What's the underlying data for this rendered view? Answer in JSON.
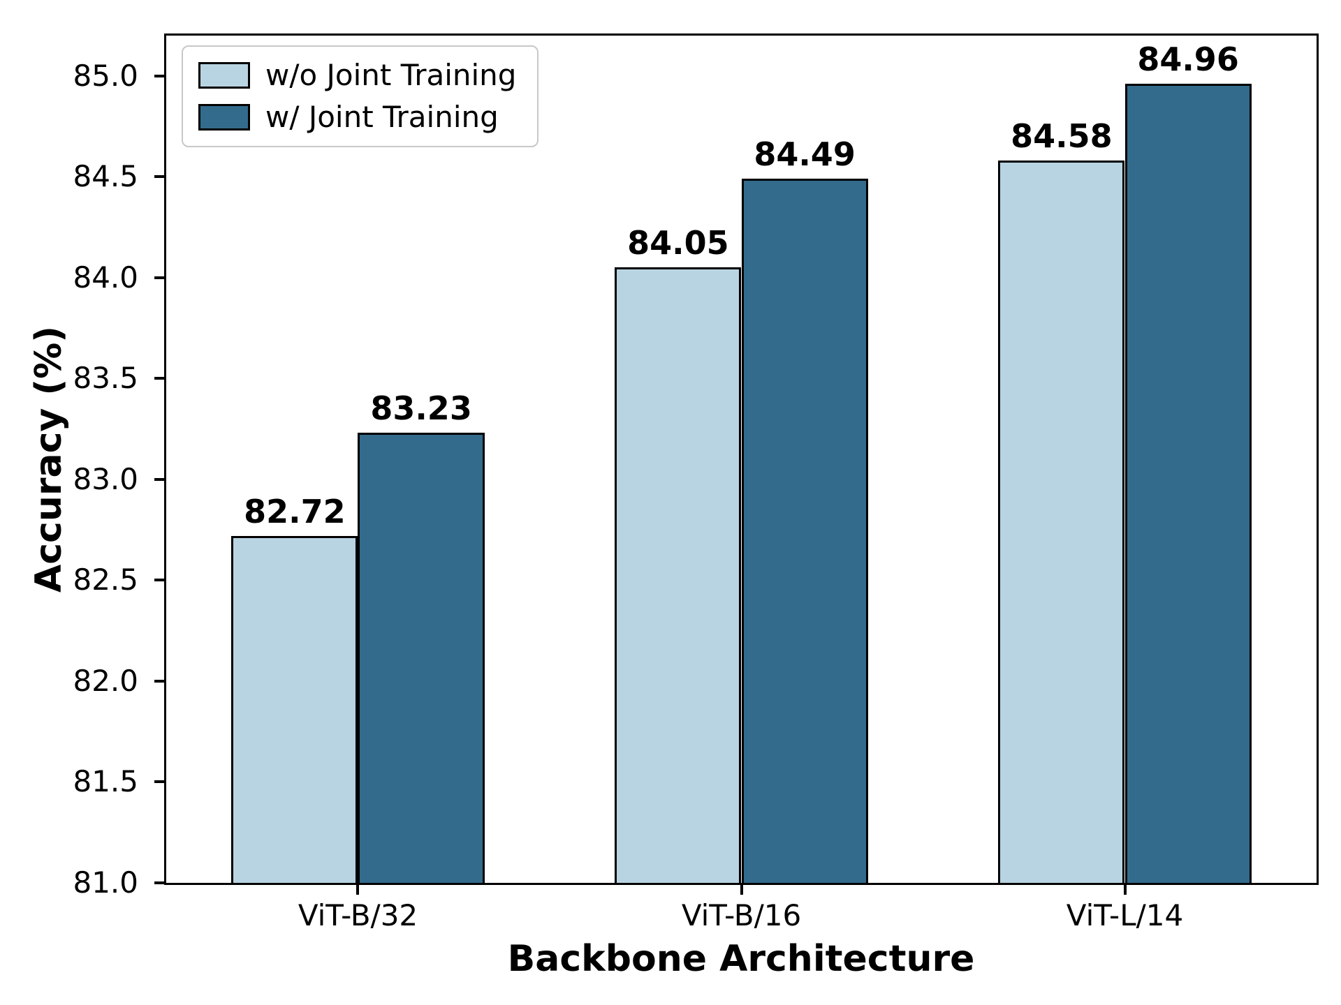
{
  "chart_data": {
    "type": "bar",
    "title": "",
    "xlabel": "Backbone Architecture",
    "ylabel": "Accuracy (%)",
    "categories": [
      "ViT-B/32",
      "ViT-B/16",
      "ViT-L/14"
    ],
    "series": [
      {
        "name": "w/o Joint Training",
        "color": "#b8d4e2",
        "values": [
          82.72,
          84.05,
          84.58
        ]
      },
      {
        "name": "w/ Joint Training",
        "color": "#336b8c",
        "values": [
          83.23,
          84.49,
          84.96
        ]
      }
    ],
    "ylim": [
      81.0,
      85.2
    ],
    "yticks": [
      81.0,
      81.5,
      82.0,
      82.5,
      83.0,
      83.5,
      84.0,
      84.5,
      85.0
    ],
    "bar_edge_color": "#000000",
    "legend_position": "upper-left",
    "grid": false,
    "value_labels_decimals": 2
  }
}
